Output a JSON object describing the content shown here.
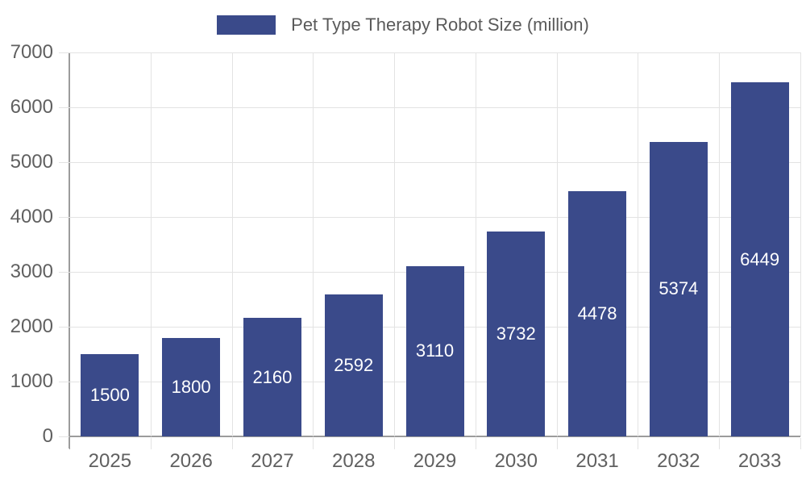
{
  "chart_data": {
    "type": "bar",
    "title": "Pet Type Therapy Robot Size (million)",
    "legend_entries": [
      "Pet Type Therapy Robot Size (million)"
    ],
    "legend_position": "top-center",
    "categories": [
      "2025",
      "2026",
      "2027",
      "2028",
      "2029",
      "2030",
      "2031",
      "2032",
      "2033"
    ],
    "values": [
      1500,
      1800,
      2160,
      2592,
      3110,
      3732,
      4478,
      5374,
      6449
    ],
    "bar_labels": [
      "1500",
      "1800",
      "2160",
      "2592",
      "3110",
      "3732",
      "4478",
      "5374",
      "6449"
    ],
    "bar_label_position": "inside-center",
    "xlabel": "",
    "ylabel": "",
    "ylim": [
      0,
      7000
    ],
    "yticks": [
      0,
      1000,
      2000,
      3000,
      4000,
      5000,
      6000,
      7000
    ],
    "grid": true,
    "colors": {
      "bar": "#3a4a8a",
      "bar_label_text": "#ffffff",
      "grid_line": "#e3e3e3",
      "axis_line": "#9c9c9c",
      "tick_label_text": "#606060",
      "legend_text": "#5a5a5a",
      "background": "#ffffff"
    }
  }
}
